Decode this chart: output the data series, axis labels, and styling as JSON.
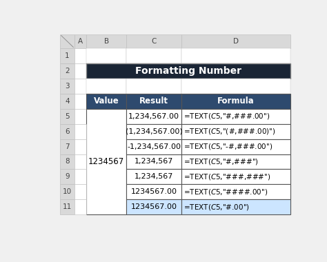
{
  "title": "Formatting Number",
  "title_bg": "#1a2535",
  "title_color": "#ffffff",
  "header_bg": "#2e4a6e",
  "header_color": "#ffffff",
  "headers": [
    "Value",
    "Result",
    "Formula"
  ],
  "rows": [
    [
      "",
      "1,234,567.00",
      "=TEXT($C$5,\"#,###.00\")"
    ],
    [
      "",
      "(1,234,567.00)",
      "=TEXT($C$5,\"(#,###.00)\")"
    ],
    [
      "",
      "-1,234,567.00",
      "=TEXT($C$5,\"-#,###.00\")"
    ],
    [
      "1234567",
      "1,234,567",
      "=TEXT($C$5,\"#,###\")"
    ],
    [
      "",
      "1,234,567",
      "=TEXT($C$5,\"###,###\")"
    ],
    [
      "",
      "1234567.00",
      "=TEXT($C$5,\"####.00\")"
    ],
    [
      "",
      "1234567.00",
      "=TEXT($C$5,\"#.00\")"
    ]
  ],
  "outer_bg": "#f0f0f0",
  "excel_col_labels": [
    "A",
    "B",
    "C",
    "D"
  ],
  "excel_row_labels": [
    "1",
    "2",
    "3",
    "4",
    "5",
    "6",
    "7",
    "8",
    "9",
    "10",
    "11"
  ],
  "excel_header_bg": "#d9d9d9",
  "excel_header_color": "#444444",
  "row_cell_bg": "#ffffff",
  "last_row_bg": "#cce5ff",
  "border_color_light": "#c0c0c0",
  "border_color_dark": "#888888",
  "border_color_table": "#555555"
}
